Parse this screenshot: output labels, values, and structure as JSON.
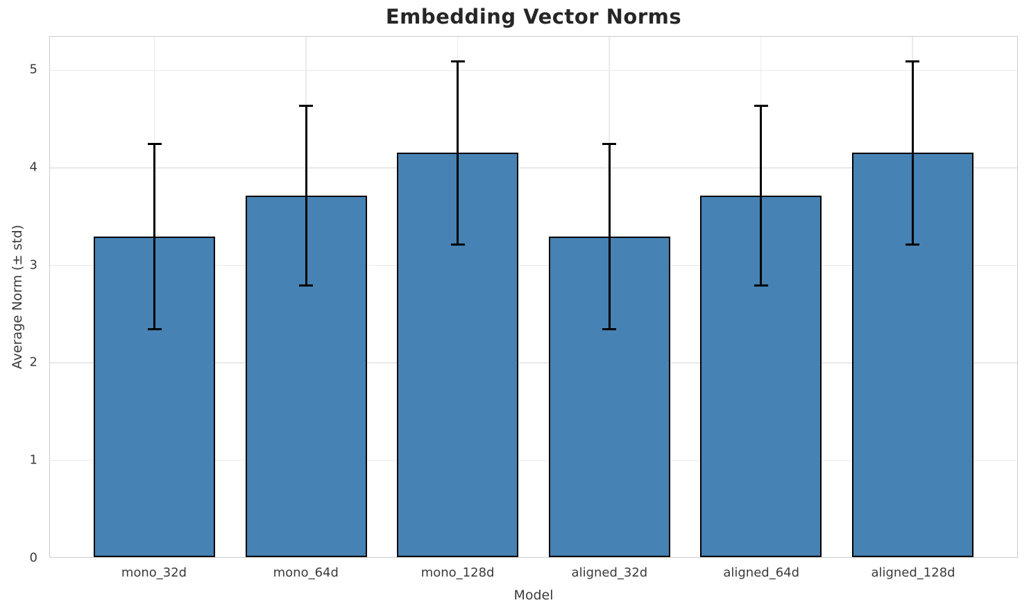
{
  "chart_data": {
    "type": "bar",
    "title": "Embedding Vector Norms",
    "xlabel": "Model",
    "ylabel": "Average Norm (± std)",
    "categories": [
      "mono_32d",
      "mono_64d",
      "mono_128d",
      "aligned_32d",
      "aligned_64d",
      "aligned_128d"
    ],
    "values": [
      3.29,
      3.71,
      4.15,
      3.29,
      3.71,
      4.15
    ],
    "errors_std": [
      0.95,
      0.92,
      0.94,
      0.95,
      0.92,
      0.94
    ],
    "error_upper": [
      4.24,
      4.63,
      5.09,
      4.24,
      4.63,
      5.09
    ],
    "error_lower": [
      2.34,
      2.79,
      3.21,
      2.34,
      2.79,
      3.21
    ],
    "yticks": [
      0,
      1,
      2,
      3,
      4,
      5
    ],
    "ylim": [
      0,
      5.34
    ],
    "grid": true,
    "legend": false,
    "layout_hints": {
      "bar_width_frac": 0.8,
      "x_margin": 0.69
    },
    "colors": {
      "bar_fill": "#4682B4",
      "bar_edge": "#000000",
      "error_bar": "#000000",
      "grid_line": "#e9e9e9",
      "axis_spine": "#cccccc",
      "title_text": "#262626",
      "tick_text": "#3a3a3a",
      "background": "#ffffff"
    }
  }
}
